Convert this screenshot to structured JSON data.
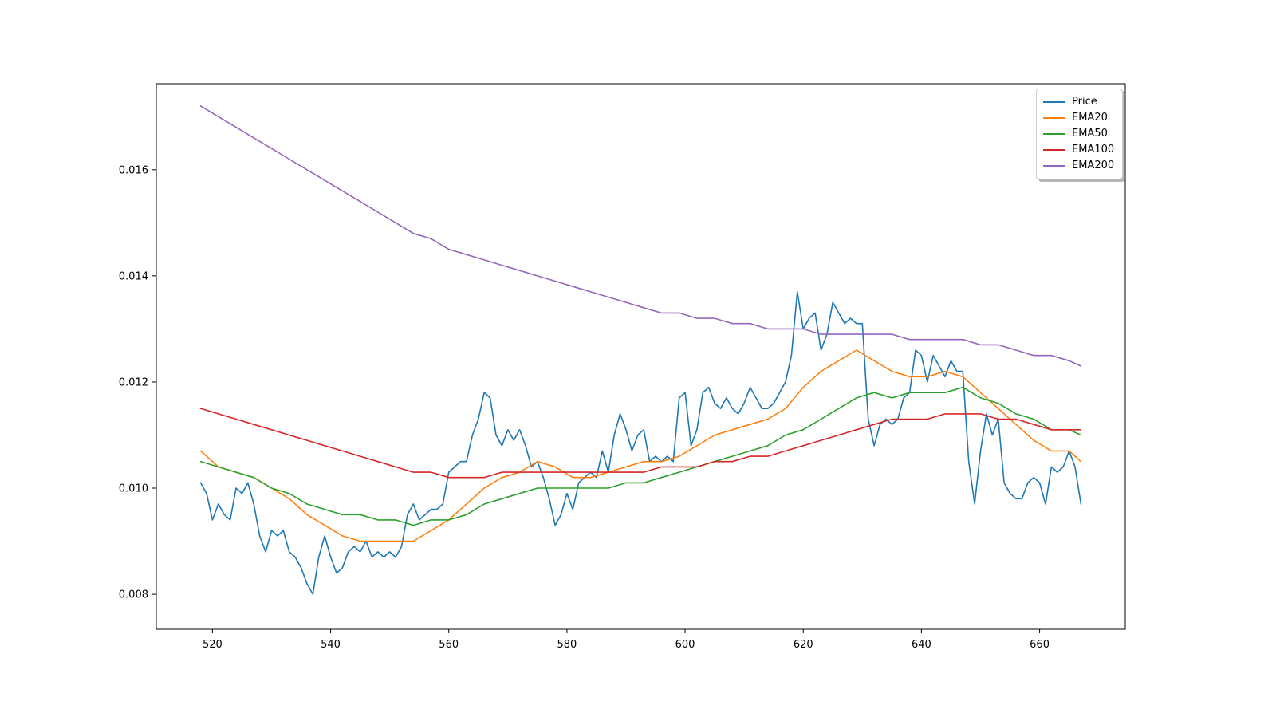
{
  "figure": {
    "background": "#ffffff",
    "axes_edge_color": "#000000"
  },
  "chart_data": {
    "type": "line",
    "title": "",
    "xlabel": "",
    "ylabel": "",
    "grid": false,
    "legend_position": "upper right",
    "xlim": [
      510.5,
      674.5
    ],
    "ylim": [
      0.00734,
      0.01762
    ],
    "x_ticks": [
      520,
      540,
      560,
      580,
      600,
      620,
      640,
      660
    ],
    "y_ticks": [
      0.008,
      0.01,
      0.012,
      0.014,
      0.016
    ],
    "y_tick_labels": [
      "0.008",
      "0.010",
      "0.012",
      "0.014",
      "0.016"
    ],
    "series": [
      {
        "name": "Price",
        "color": "#1f77b4",
        "x_start": 518,
        "x_step": 1,
        "values": [
          0.0101,
          0.0099,
          0.0094,
          0.0097,
          0.0095,
          0.0094,
          0.01,
          0.0099,
          0.0101,
          0.0097,
          0.0091,
          0.0088,
          0.0092,
          0.0091,
          0.0092,
          0.0088,
          0.0087,
          0.0085,
          0.0082,
          0.008,
          0.0087,
          0.0091,
          0.0087,
          0.0084,
          0.0085,
          0.0088,
          0.0089,
          0.0088,
          0.009,
          0.0087,
          0.0088,
          0.0087,
          0.0088,
          0.0087,
          0.0089,
          0.0095,
          0.0097,
          0.0094,
          0.0095,
          0.0096,
          0.0096,
          0.0097,
          0.0103,
          0.0104,
          0.0105,
          0.0105,
          0.011,
          0.0113,
          0.0118,
          0.0117,
          0.011,
          0.0108,
          0.0111,
          0.0109,
          0.0111,
          0.0108,
          0.0104,
          0.0105,
          0.0102,
          0.0098,
          0.0093,
          0.0095,
          0.0099,
          0.0096,
          0.0101,
          0.0102,
          0.0103,
          0.0102,
          0.0107,
          0.0103,
          0.011,
          0.0114,
          0.0111,
          0.0107,
          0.011,
          0.0111,
          0.0105,
          0.0106,
          0.0105,
          0.0106,
          0.0105,
          0.0117,
          0.0118,
          0.0108,
          0.0111,
          0.0118,
          0.0119,
          0.0116,
          0.0115,
          0.0117,
          0.0115,
          0.0114,
          0.0116,
          0.0119,
          0.0117,
          0.0115,
          0.0115,
          0.0116,
          0.0118,
          0.012,
          0.0125,
          0.0137,
          0.013,
          0.0132,
          0.0133,
          0.0126,
          0.0129,
          0.0135,
          0.0133,
          0.0131,
          0.0132,
          0.0131,
          0.0131,
          0.0113,
          0.0108,
          0.0112,
          0.0113,
          0.0112,
          0.0113,
          0.0117,
          0.0118,
          0.0126,
          0.0125,
          0.012,
          0.0125,
          0.0123,
          0.0121,
          0.0124,
          0.0122,
          0.0122,
          0.0105,
          0.0097,
          0.0107,
          0.0114,
          0.011,
          0.0113,
          0.0101,
          0.0099,
          0.0098,
          0.0098,
          0.0101,
          0.0102,
          0.0101,
          0.0097,
          0.0104,
          0.0103,
          0.0104,
          0.0107,
          0.0104,
          0.0097
        ]
      },
      {
        "name": "EMA20",
        "color": "#ff7f0e",
        "x": [
          518,
          521,
          524,
          527,
          530,
          533,
          536,
          539,
          542,
          545,
          548,
          551,
          554,
          557,
          560,
          563,
          566,
          569,
          572,
          575,
          578,
          581,
          584,
          587,
          590,
          593,
          596,
          599,
          602,
          605,
          608,
          611,
          614,
          617,
          620,
          623,
          626,
          629,
          632,
          635,
          638,
          641,
          644,
          647,
          650,
          653,
          656,
          659,
          662,
          665,
          667
        ],
        "values": [
          0.0107,
          0.0104,
          0.0103,
          0.0102,
          0.01,
          0.0098,
          0.0095,
          0.0093,
          0.0091,
          0.009,
          0.009,
          0.009,
          0.009,
          0.0092,
          0.0094,
          0.0097,
          0.01,
          0.0102,
          0.0103,
          0.0105,
          0.0104,
          0.0102,
          0.0102,
          0.0103,
          0.0104,
          0.0105,
          0.0105,
          0.0106,
          0.0108,
          0.011,
          0.0111,
          0.0112,
          0.0113,
          0.0115,
          0.0119,
          0.0122,
          0.0124,
          0.0126,
          0.0124,
          0.0122,
          0.0121,
          0.0121,
          0.0122,
          0.0121,
          0.0118,
          0.0115,
          0.0112,
          0.0109,
          0.0107,
          0.0107,
          0.0105
        ]
      },
      {
        "name": "EMA50",
        "color": "#2ca02c",
        "x": [
          518,
          521,
          524,
          527,
          530,
          533,
          536,
          539,
          542,
          545,
          548,
          551,
          554,
          557,
          560,
          563,
          566,
          569,
          572,
          575,
          578,
          581,
          584,
          587,
          590,
          593,
          596,
          599,
          602,
          605,
          608,
          611,
          614,
          617,
          620,
          623,
          626,
          629,
          632,
          635,
          638,
          641,
          644,
          647,
          650,
          653,
          656,
          659,
          662,
          665,
          667
        ],
        "values": [
          0.0105,
          0.0104,
          0.0103,
          0.0102,
          0.01,
          0.0099,
          0.0097,
          0.0096,
          0.0095,
          0.0095,
          0.0094,
          0.0094,
          0.0093,
          0.0094,
          0.0094,
          0.0095,
          0.0097,
          0.0098,
          0.0099,
          0.01,
          0.01,
          0.01,
          0.01,
          0.01,
          0.0101,
          0.0101,
          0.0102,
          0.0103,
          0.0104,
          0.0105,
          0.0106,
          0.0107,
          0.0108,
          0.011,
          0.0111,
          0.0113,
          0.0115,
          0.0117,
          0.0118,
          0.0117,
          0.0118,
          0.0118,
          0.0118,
          0.0119,
          0.0117,
          0.0116,
          0.0114,
          0.0113,
          0.0111,
          0.0111,
          0.011
        ]
      },
      {
        "name": "EMA100",
        "color": "#d62728",
        "x": [
          518,
          521,
          524,
          527,
          530,
          533,
          536,
          539,
          542,
          545,
          548,
          551,
          554,
          557,
          560,
          563,
          566,
          569,
          572,
          575,
          578,
          581,
          584,
          587,
          590,
          593,
          596,
          599,
          602,
          605,
          608,
          611,
          614,
          617,
          620,
          623,
          626,
          629,
          632,
          635,
          638,
          641,
          644,
          647,
          650,
          653,
          656,
          659,
          662,
          665,
          667
        ],
        "values": [
          0.0115,
          0.0114,
          0.0113,
          0.0112,
          0.0111,
          0.011,
          0.0109,
          0.0108,
          0.0107,
          0.0106,
          0.0105,
          0.0104,
          0.0103,
          0.0103,
          0.0102,
          0.0102,
          0.0102,
          0.0103,
          0.0103,
          0.0103,
          0.0103,
          0.0103,
          0.0103,
          0.0103,
          0.0103,
          0.0103,
          0.0104,
          0.0104,
          0.0104,
          0.0105,
          0.0105,
          0.0106,
          0.0106,
          0.0107,
          0.0108,
          0.0109,
          0.011,
          0.0111,
          0.0112,
          0.0113,
          0.0113,
          0.0113,
          0.0114,
          0.0114,
          0.0114,
          0.0113,
          0.0113,
          0.0112,
          0.0111,
          0.0111,
          0.0111
        ]
      },
      {
        "name": "EMA200",
        "color": "#9467bd",
        "x": [
          518,
          521,
          524,
          527,
          530,
          533,
          536,
          539,
          542,
          545,
          548,
          551,
          554,
          557,
          560,
          563,
          566,
          569,
          572,
          575,
          578,
          581,
          584,
          587,
          590,
          593,
          596,
          599,
          602,
          605,
          608,
          611,
          614,
          617,
          620,
          623,
          626,
          629,
          632,
          635,
          638,
          641,
          644,
          647,
          650,
          653,
          656,
          659,
          662,
          665,
          667
        ],
        "values": [
          0.0172,
          0.017,
          0.0168,
          0.0166,
          0.0164,
          0.0162,
          0.016,
          0.0158,
          0.0156,
          0.0154,
          0.0152,
          0.015,
          0.0148,
          0.0147,
          0.0145,
          0.0144,
          0.0143,
          0.0142,
          0.0141,
          0.014,
          0.0139,
          0.0138,
          0.0137,
          0.0136,
          0.0135,
          0.0134,
          0.0133,
          0.0133,
          0.0132,
          0.0132,
          0.0131,
          0.0131,
          0.013,
          0.013,
          0.013,
          0.0129,
          0.0129,
          0.0129,
          0.0129,
          0.0129,
          0.0128,
          0.0128,
          0.0128,
          0.0128,
          0.0127,
          0.0127,
          0.0126,
          0.0125,
          0.0125,
          0.0124,
          0.0123
        ]
      }
    ]
  },
  "legend": {
    "labels": [
      "Price",
      "EMA20",
      "EMA50",
      "EMA100",
      "EMA200"
    ]
  }
}
